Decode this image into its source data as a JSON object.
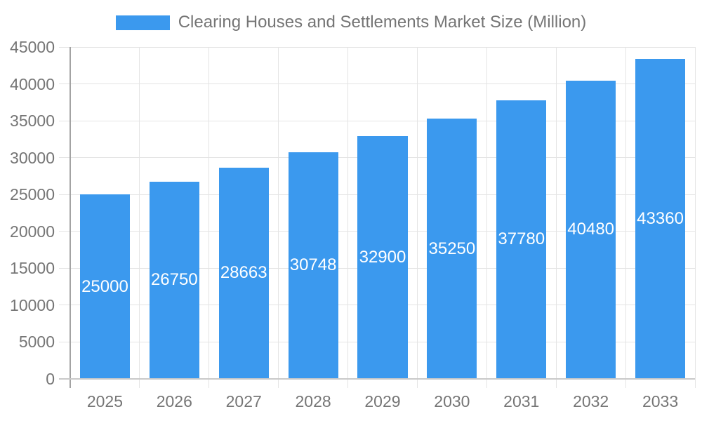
{
  "chart_data": {
    "type": "bar",
    "title": "Clearing Houses and Settlements Market Size (Million)",
    "legend": {
      "position": "top",
      "entries": [
        "Clearing Houses and Settlements Market Size (Million)"
      ]
    },
    "categories": [
      "2025",
      "2026",
      "2027",
      "2028",
      "2029",
      "2030",
      "2031",
      "2032",
      "2033"
    ],
    "series": [
      {
        "name": "Clearing Houses and Settlements Market Size (Million)",
        "values": [
          25000,
          26750,
          28663,
          30748,
          32900,
          35250,
          37780,
          40480,
          43360
        ]
      }
    ],
    "value_labels": [
      "25000",
      "26750",
      "28663",
      "30748",
      "32900",
      "35250",
      "37780",
      "40480",
      "43360"
    ],
    "xlabel": "",
    "ylabel": "",
    "ylim": [
      0,
      45000
    ],
    "ytick_step": 5000,
    "ytick_labels": [
      "0",
      "5000",
      "10000",
      "15000",
      "20000",
      "25000",
      "30000",
      "35000",
      "40000",
      "45000"
    ],
    "grid": true,
    "colors": {
      "bar": "#3b99ee",
      "value_label": "#ffffff",
      "axis_text": "#757575",
      "gridline": "#e4e4e4",
      "y_axis_line": "#a3a3a3",
      "x_axis_line": "#c9c9c9",
      "background": "#ffffff"
    }
  }
}
